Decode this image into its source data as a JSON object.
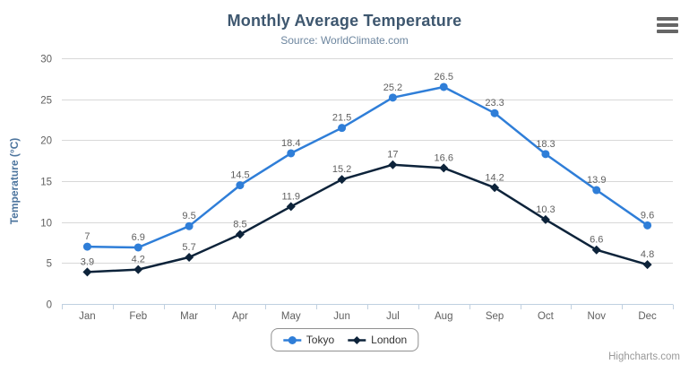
{
  "header": {
    "title": "Monthly Average Temperature",
    "subtitle": "Source: WorldClimate.com"
  },
  "chart_data": {
    "type": "line",
    "title": "Monthly Average Temperature",
    "subtitle": "Source: WorldClimate.com",
    "categories": [
      "Jan",
      "Feb",
      "Mar",
      "Apr",
      "May",
      "Jun",
      "Jul",
      "Aug",
      "Sep",
      "Oct",
      "Nov",
      "Dec"
    ],
    "series": [
      {
        "name": "Tokyo",
        "color": "#2f7ed8",
        "marker": "circle",
        "values": [
          7,
          6.9,
          9.5,
          14.5,
          18.4,
          21.5,
          25.2,
          26.5,
          23.3,
          18.3,
          13.9,
          9.6
        ]
      },
      {
        "name": "London",
        "color": "#0d233a",
        "marker": "diamond",
        "values": [
          3.9,
          4.2,
          5.7,
          8.5,
          11.9,
          15.2,
          17,
          16.6,
          14.2,
          10.3,
          6.6,
          4.8
        ]
      }
    ],
    "xlabel": "",
    "ylabel": "Temperature (°C)",
    "ylim": [
      0,
      30
    ],
    "yticks": [
      0,
      5,
      10,
      15,
      20,
      25,
      30
    ],
    "grid": true,
    "data_labels": true,
    "legend_position": "bottom-center"
  },
  "credits": "Highcharts.com",
  "colors": {
    "title": "#3e576f",
    "subtitle": "#6d869f",
    "axis_title": "#4d759e",
    "axis_labels": "#606060",
    "data_labels": "#606060",
    "gridline": "#d8d8d8",
    "axis_line": "#c0d0e0",
    "legend_border": "#909090",
    "legend_text": "#333333",
    "credits": "#999999",
    "menu_icon": "#666666",
    "background": "#ffffff"
  }
}
